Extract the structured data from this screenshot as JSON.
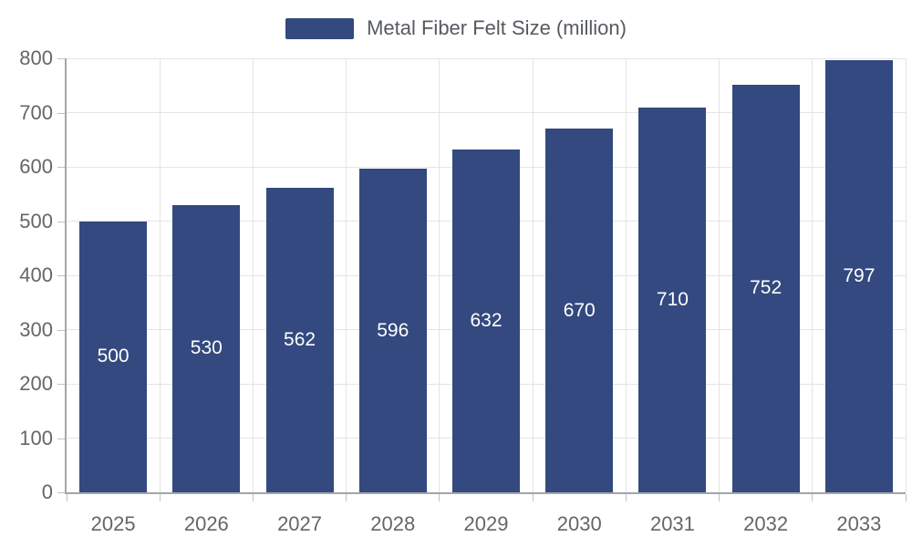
{
  "chart_data": {
    "type": "bar",
    "title": "Metal Fiber Felt Size (million)",
    "legend": {
      "label": "Metal Fiber Felt Size (million)",
      "position": "top-center"
    },
    "categories": [
      "2025",
      "2026",
      "2027",
      "2028",
      "2029",
      "2030",
      "2031",
      "2032",
      "2033"
    ],
    "values": [
      500,
      530,
      562,
      596,
      632,
      670,
      710,
      752,
      797
    ],
    "xlabel": "",
    "ylabel": "",
    "ylim": [
      0,
      800
    ],
    "yticks": [
      0,
      100,
      200,
      300,
      400,
      500,
      600,
      700,
      800
    ],
    "grid": true,
    "gridlines": "horizontal-and-vertical-category-boundaries",
    "data_labels": "inside-center-white",
    "colors": {
      "bar": "#33497F",
      "grid": "#e4e4e8",
      "axis_line": "#a2a5ab",
      "tick": "#bfc2c9",
      "axis_text": "#666666",
      "legend_text": "#555a60",
      "data_label_text": "#ffffff",
      "background": "#ffffff"
    }
  }
}
